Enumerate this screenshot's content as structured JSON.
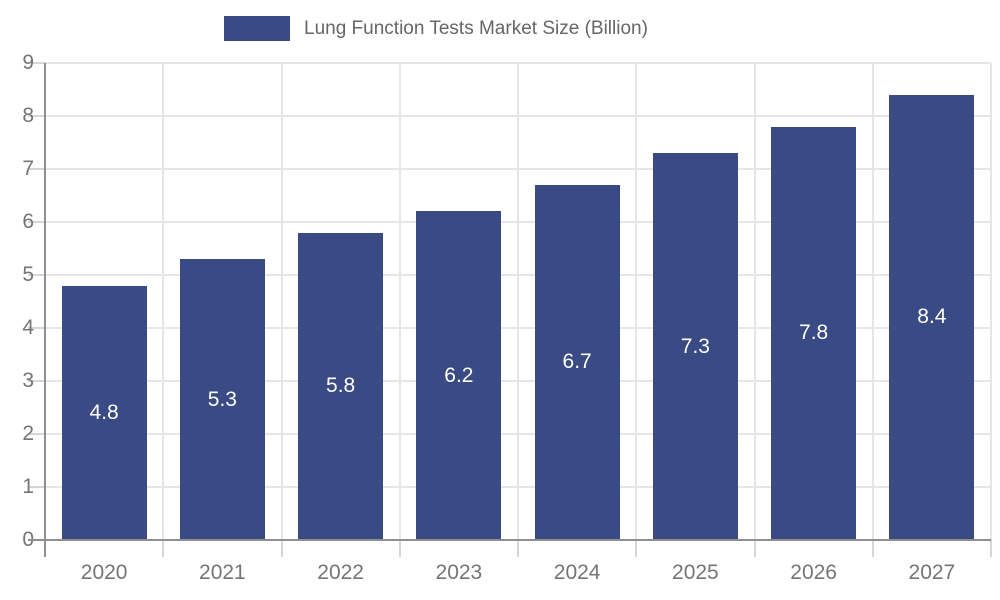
{
  "legend": {
    "label": "Lung Function Tests Market Size (Billion)"
  },
  "chart_data": {
    "type": "bar",
    "title": "Lung Function Tests Market Size (Billion)",
    "categories": [
      "2020",
      "2021",
      "2022",
      "2023",
      "2024",
      "2025",
      "2026",
      "2027"
    ],
    "values": [
      4.8,
      5.3,
      5.8,
      6.2,
      6.7,
      7.3,
      7.8,
      8.4
    ],
    "bar_labels": [
      "4.8",
      "5.3",
      "5.8",
      "6.2",
      "6.7",
      "7.3",
      "7.8",
      "8.4"
    ],
    "series_name": "Lung Function Tests Market Size (Billion)",
    "xlabel": "",
    "ylabel": "",
    "ylim": [
      0,
      9
    ],
    "y_ticks": [
      0,
      1,
      2,
      3,
      4,
      5,
      6,
      7,
      8,
      9
    ],
    "grid": true,
    "legend_position": "top-center",
    "bar_label_position": "inside-center",
    "colors": {
      "bar": "#394A85",
      "grid": "#E6E6E6",
      "axis": "#8F8F8F",
      "tick": "#D6D6D6",
      "tick_label": "#757575",
      "bar_label": "#FFFFFF",
      "legend_text": "#666666",
      "background": "#FFFFFF"
    }
  }
}
